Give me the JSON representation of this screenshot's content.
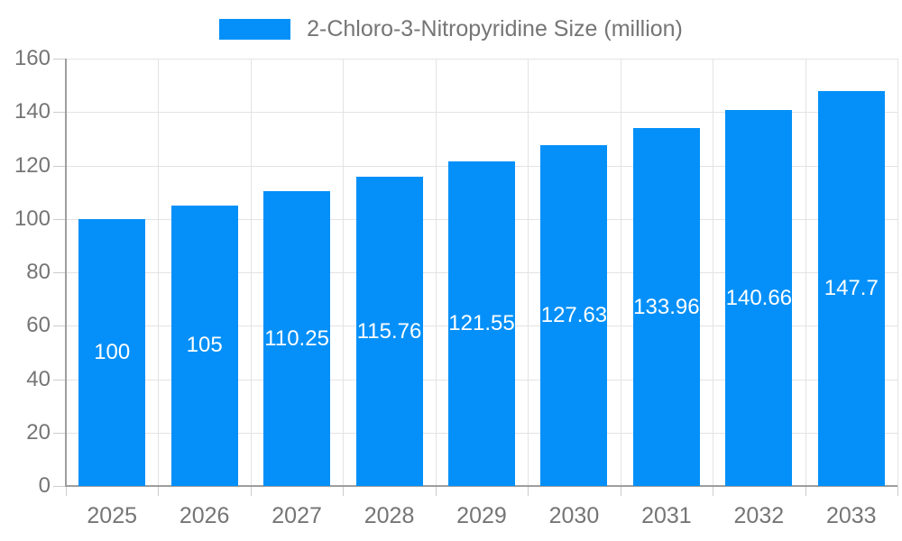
{
  "chart_data": {
    "type": "bar",
    "title": "2-Chloro-3-Nitropyridine Size (million)",
    "categories": [
      "2025",
      "2026",
      "2027",
      "2028",
      "2029",
      "2030",
      "2031",
      "2032",
      "2033"
    ],
    "values": [
      100,
      105,
      110.25,
      115.76,
      121.55,
      127.63,
      133.96,
      140.66,
      147.7
    ],
    "value_labels": [
      "100",
      "105",
      "110.25",
      "115.76",
      "121.55",
      "127.63",
      "133.96",
      "140.66",
      "147.7"
    ],
    "xlabel": "",
    "ylabel": "",
    "ylim": [
      0,
      160
    ],
    "yticks": [
      0,
      20,
      40,
      60,
      80,
      100,
      120,
      140,
      160
    ],
    "grid": true,
    "legend_position": "top",
    "value_label_position": "center-inside"
  },
  "colors": {
    "bar": "#0590F9",
    "bar_label": "#ffffff",
    "axis_text": "#757575",
    "legend_text": "#757575",
    "axis_line": "#9e9e9e",
    "gridline": "#e3e3e3",
    "tick": "#cccccc",
    "background": "#ffffff"
  }
}
